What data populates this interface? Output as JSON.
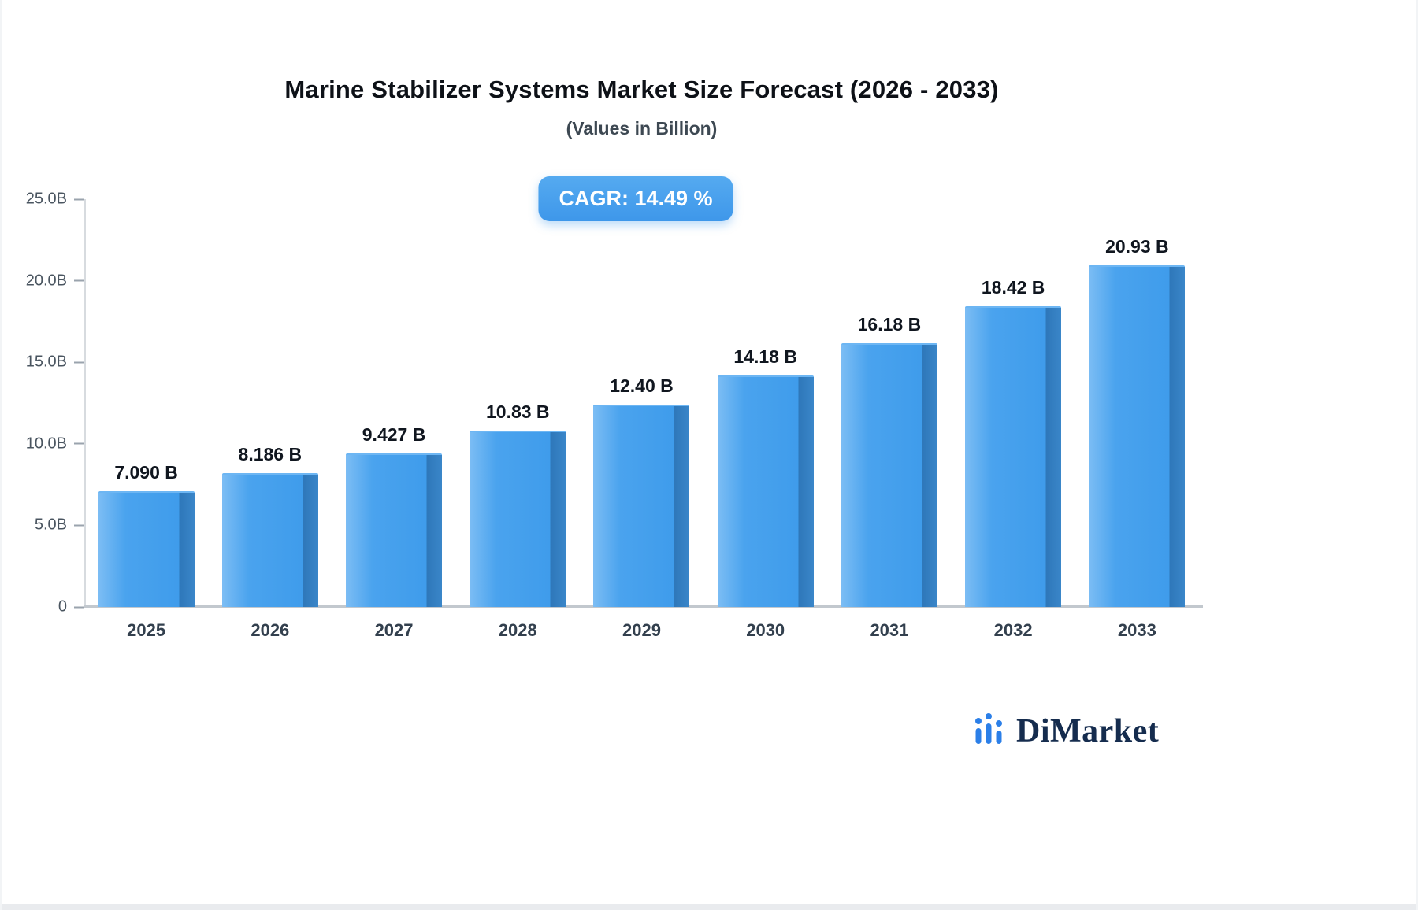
{
  "header": {
    "title": "Marine Stabilizer Systems Market Size Forecast (2026 - 2033)",
    "subtitle": "(Values in Billion)",
    "cagr_label": "CAGR: 14.49 %"
  },
  "chart_data": {
    "type": "bar",
    "title": "Marine Stabilizer Systems Market Size Forecast (2026 - 2033)",
    "subtitle": "(Values in Billion)",
    "categories": [
      "2025",
      "2026",
      "2027",
      "2028",
      "2029",
      "2030",
      "2031",
      "2032",
      "2033"
    ],
    "values": [
      7.09,
      8.186,
      9.427,
      10.83,
      12.4,
      14.18,
      16.18,
      18.42,
      20.93
    ],
    "value_labels": [
      "7.090 B",
      "8.186 B",
      "9.427 B",
      "10.83 B",
      "12.40 B",
      "14.18 B",
      "16.18 B",
      "18.42 B",
      "20.93 B"
    ],
    "xlabel": "",
    "ylabel": "",
    "ylim": [
      0,
      25
    ],
    "yticks": [
      "25.0B",
      "20.0B",
      "15.0B",
      "10.0B",
      "5.0B",
      "0"
    ],
    "grid": false,
    "legend": "none",
    "annotations": [
      "CAGR: 14.49 %"
    ],
    "bar_color": "#42a0ed",
    "bar_edge_color": "#2e77b9",
    "badge_color": "#3e97ea"
  },
  "footer": {
    "brand": "DiMarket"
  }
}
